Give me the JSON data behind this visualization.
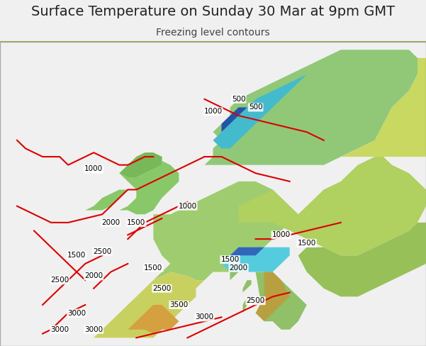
{
  "title": "Surface Temperature on Sunday 30 Mar at 9pm GMT",
  "subtitle": "Freezing level contours",
  "title_fontsize": 14,
  "subtitle_fontsize": 10,
  "title_color": "#222222",
  "subtitle_color": "#444444",
  "bg_color": "#b8c8e8",
  "header_bg": "#f0f0f0",
  "fig_width": 6.01,
  "fig_height": 4.88,
  "dpi": 100,
  "border_color": "#888888",
  "contour_color": "#dd0000",
  "contour_labels": [
    "500",
    "1000",
    "1500",
    "2000",
    "2500",
    "3000",
    "3500"
  ],
  "land_colors": {
    "ocean": "#b8c8e8",
    "low_land": "#90c870",
    "mid_land": "#c8d870",
    "high_land": "#d8a050",
    "mountain": "#00aacc",
    "snow": "#0044aa"
  }
}
